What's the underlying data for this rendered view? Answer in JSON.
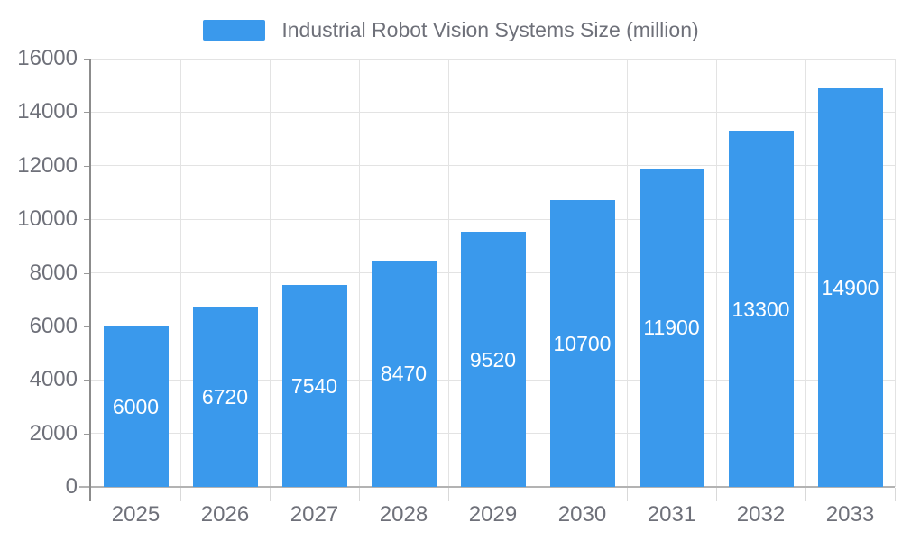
{
  "chart_data": {
    "type": "bar",
    "title": "Industrial Robot Vision Systems Size (million)",
    "categories": [
      "2025",
      "2026",
      "2027",
      "2028",
      "2029",
      "2030",
      "2031",
      "2032",
      "2033"
    ],
    "values": [
      6000,
      6720,
      7540,
      8470,
      9520,
      10700,
      11900,
      13300,
      14900
    ],
    "series": [
      {
        "name": "Industrial Robot Vision Systems Size (million)",
        "values": [
          6000,
          6720,
          7540,
          8470,
          9520,
          10700,
          11900,
          13300,
          14900
        ]
      }
    ],
    "xlabel": "",
    "ylabel": "",
    "ylim": [
      0,
      16000
    ],
    "yticks": [
      0,
      2000,
      4000,
      6000,
      8000,
      10000,
      12000,
      14000,
      16000
    ],
    "grid": true,
    "legend_position": "top-center",
    "bar_labels_visible": true,
    "bar_label_position": "inside-center",
    "colors": {
      "bar": "#3A99EC",
      "bar_label": "#ffffff",
      "grid": "#e3e3e3",
      "axis_y": "#8c8c8c",
      "axis_x": "#b3b3b3",
      "tick": "#999999",
      "category_tick": "#d9d9d9",
      "text": "#6E7079",
      "background": "#ffffff"
    }
  }
}
